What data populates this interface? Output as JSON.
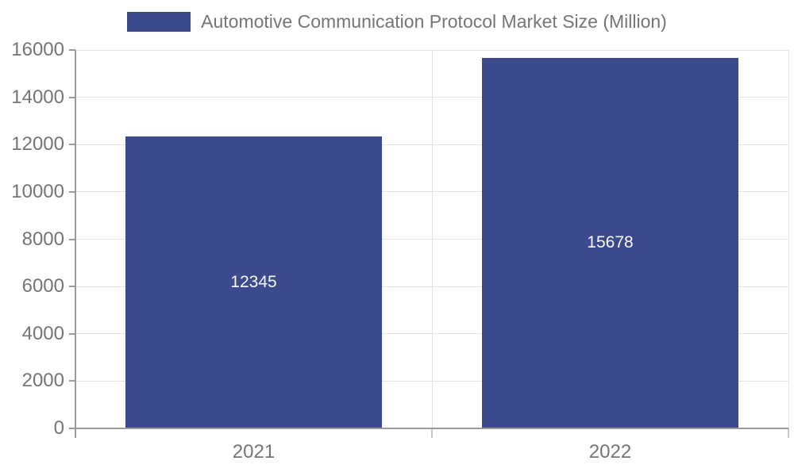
{
  "legend": {
    "label": "Automotive Communication Protocol Market Size (Million)"
  },
  "chart_data": {
    "type": "bar",
    "title": "Automotive Communication Protocol Market Size (Million)",
    "categories": [
      "2021",
      "2022"
    ],
    "series": [
      {
        "name": "Automotive Communication Protocol Market Size (Million)",
        "values": [
          12345,
          15678
        ]
      }
    ],
    "values": [
      12345,
      15678
    ],
    "data_labels": [
      "12345",
      "15678"
    ],
    "xlabel": "",
    "ylabel": "",
    "ylim": [
      0,
      16000
    ],
    "ytick_step": 2000,
    "ytick_labels": [
      "0",
      "2000",
      "4000",
      "6000",
      "8000",
      "10000",
      "12000",
      "14000",
      "16000"
    ],
    "grid": true,
    "legend_position": "top",
    "colors": {
      "bar": "#3A4A8C",
      "bar_label": "#FAFAFA",
      "axis_text": "#757575",
      "axis_line": "#9A9A9A",
      "grid_line": "#E3E3E3",
      "boundary_tick": "#C9C9C9",
      "background": "#FFFFFF"
    }
  }
}
